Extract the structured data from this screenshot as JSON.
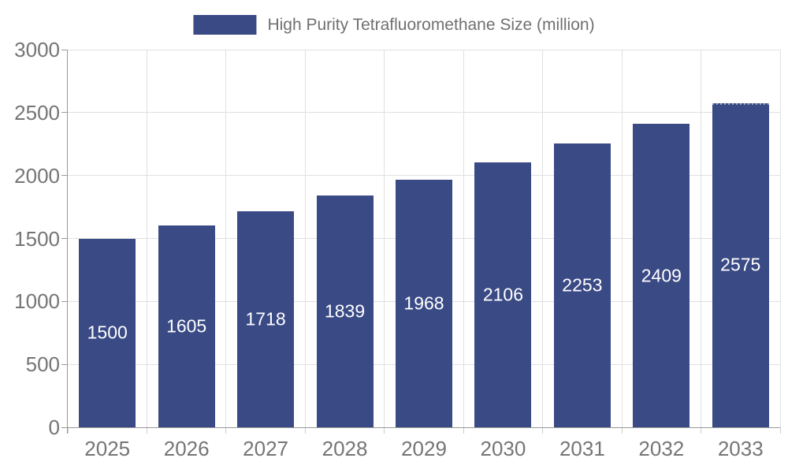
{
  "legend": {
    "label": "High Purity Tetrafluoromethane Size (million)"
  },
  "chart_data": {
    "type": "bar",
    "title": "High Purity Tetrafluoromethane Size (million)",
    "categories": [
      "2025",
      "2026",
      "2027",
      "2028",
      "2029",
      "2030",
      "2031",
      "2032",
      "2033"
    ],
    "values": [
      1500,
      1605,
      1718,
      1839,
      1968,
      2106,
      2253,
      2409,
      2575
    ],
    "xlabel": "",
    "ylabel": "",
    "ylim": [
      0,
      3000
    ],
    "yticks": [
      0,
      500,
      1000,
      1500,
      2000,
      2500,
      3000
    ],
    "grid": true,
    "legend_position": "top",
    "bar_labels_inside_center": true,
    "colors": {
      "bar": "#3A4A85",
      "bar_label": "#FFFFFF",
      "axis_text": "#757575",
      "legend_text": "#707070",
      "grid_line": "#E0E0E0",
      "axis_line": "#999999",
      "x_tick": "#CCCCCC"
    }
  }
}
